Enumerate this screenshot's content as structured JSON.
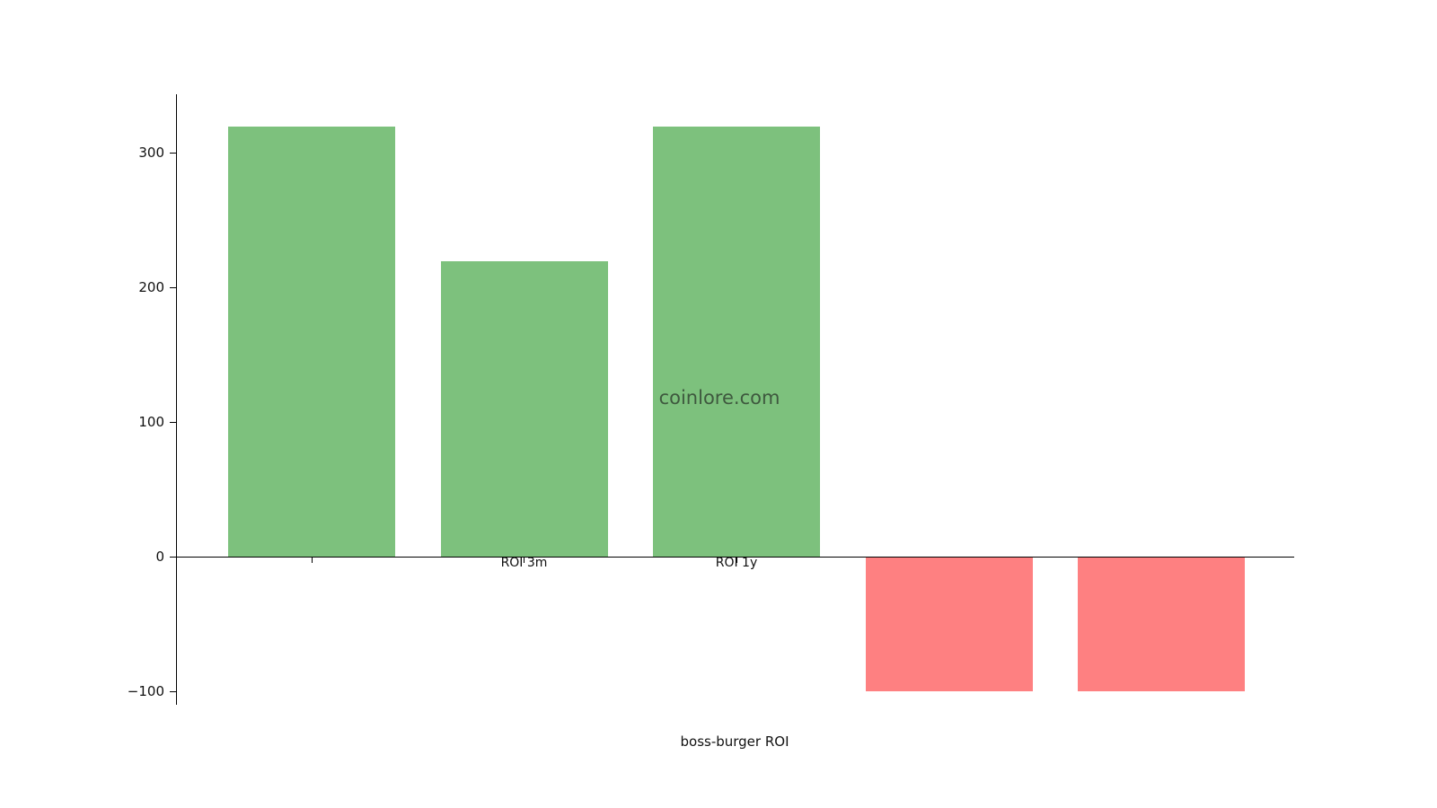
{
  "page": {
    "background_color": "#ffffff"
  },
  "chart_data": {
    "type": "bar",
    "title": "boss-burger ROI",
    "watermark": "coinlore.com",
    "categories": [
      "",
      "ROI 3m",
      "ROI 1y",
      "",
      ""
    ],
    "values": [
      320,
      220,
      320,
      -99,
      -99
    ],
    "bar_colors": [
      "#7dc17d",
      "#7dc17d",
      "#7dc17d",
      "#fe8081",
      "#fe8081"
    ],
    "positive_color": "#7dc17d",
    "negative_color": "#fe8081",
    "yticks": [
      300,
      200,
      100,
      0,
      -100
    ],
    "ylim": [
      -110,
      344
    ],
    "xlabel": "",
    "ylabel": "",
    "grid": false,
    "legend_position": "none",
    "axis_color": "#000000",
    "text_color": "#111111"
  }
}
